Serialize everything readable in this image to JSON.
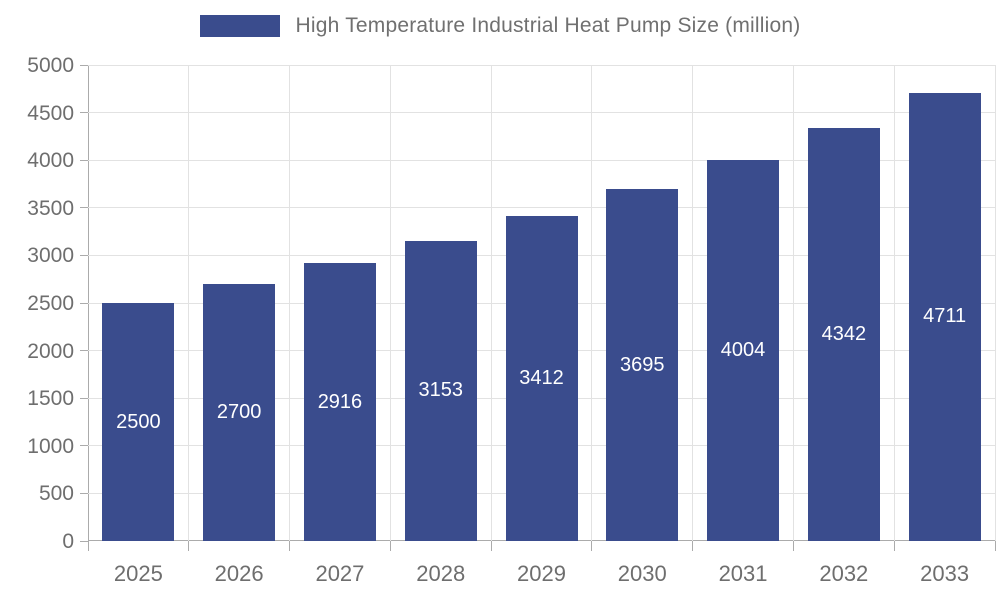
{
  "legend": {
    "label": "High Temperature Industrial Heat Pump Size (million)",
    "swatch_color": "#3A4C8D"
  },
  "chart_data": {
    "type": "bar",
    "title": "High Temperature Industrial Heat Pump Size (million)",
    "series_name": "High Temperature Industrial Heat Pump Size (million)",
    "categories": [
      "2025",
      "2026",
      "2027",
      "2028",
      "2029",
      "2030",
      "2031",
      "2032",
      "2033"
    ],
    "values": [
      2500,
      2700,
      2916,
      3153,
      3412,
      3695,
      4004,
      4342,
      4711
    ],
    "xlabel": "",
    "ylabel": "",
    "ylim": [
      0,
      5000
    ],
    "ytick_step": 500,
    "yticks": [
      0,
      500,
      1000,
      1500,
      2000,
      2500,
      3000,
      3500,
      4000,
      4500,
      5000
    ],
    "grid": true,
    "legend_position": "top",
    "bar_color": "#3A4C8D",
    "bar_label_color": "#ffffff",
    "axis_text_color": "#6e6e6e",
    "grid_color": "#e2e2e2",
    "axis_line_color": "#ababab",
    "background_color": "#ffffff"
  }
}
